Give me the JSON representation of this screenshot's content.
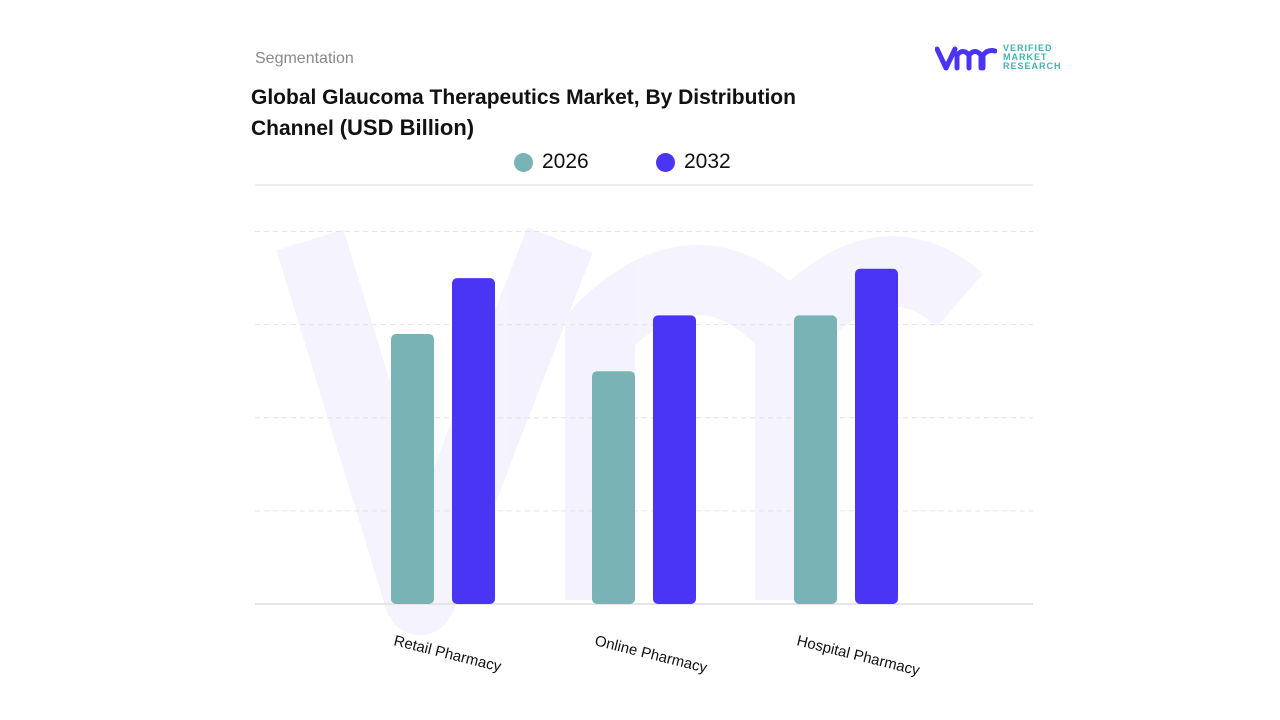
{
  "header": {
    "section": "Segmentation",
    "logo_text": [
      "VERIFIED",
      "MARKET",
      "RESEARCH"
    ],
    "logo_mark": "vmr"
  },
  "colors": {
    "series_2026": "#7AB3B5",
    "series_2032": "#4B35F5",
    "logo_purple": "#4B35F5",
    "logo_teal": "#3FB3B0"
  },
  "chart_data": {
    "type": "bar",
    "title": "Global Glaucoma Therapeutics Market, By Distribution Channel",
    "title_unit": "(USD Billion)",
    "categories": [
      "Retail Pharmacy",
      "Online Pharmacy",
      "Hospital Pharmacy"
    ],
    "series": [
      {
        "name": "2026",
        "values": [
          2.9,
          2.5,
          3.1
        ],
        "color": "#7AB3B5"
      },
      {
        "name": "2032",
        "values": [
          3.5,
          3.1,
          3.6
        ],
        "color": "#4B35F5"
      }
    ],
    "xlabel": "",
    "ylabel": "",
    "ylim": [
      0,
      4.5
    ],
    "y_ticks_shown": false,
    "grid": true,
    "legend": "top-center"
  }
}
